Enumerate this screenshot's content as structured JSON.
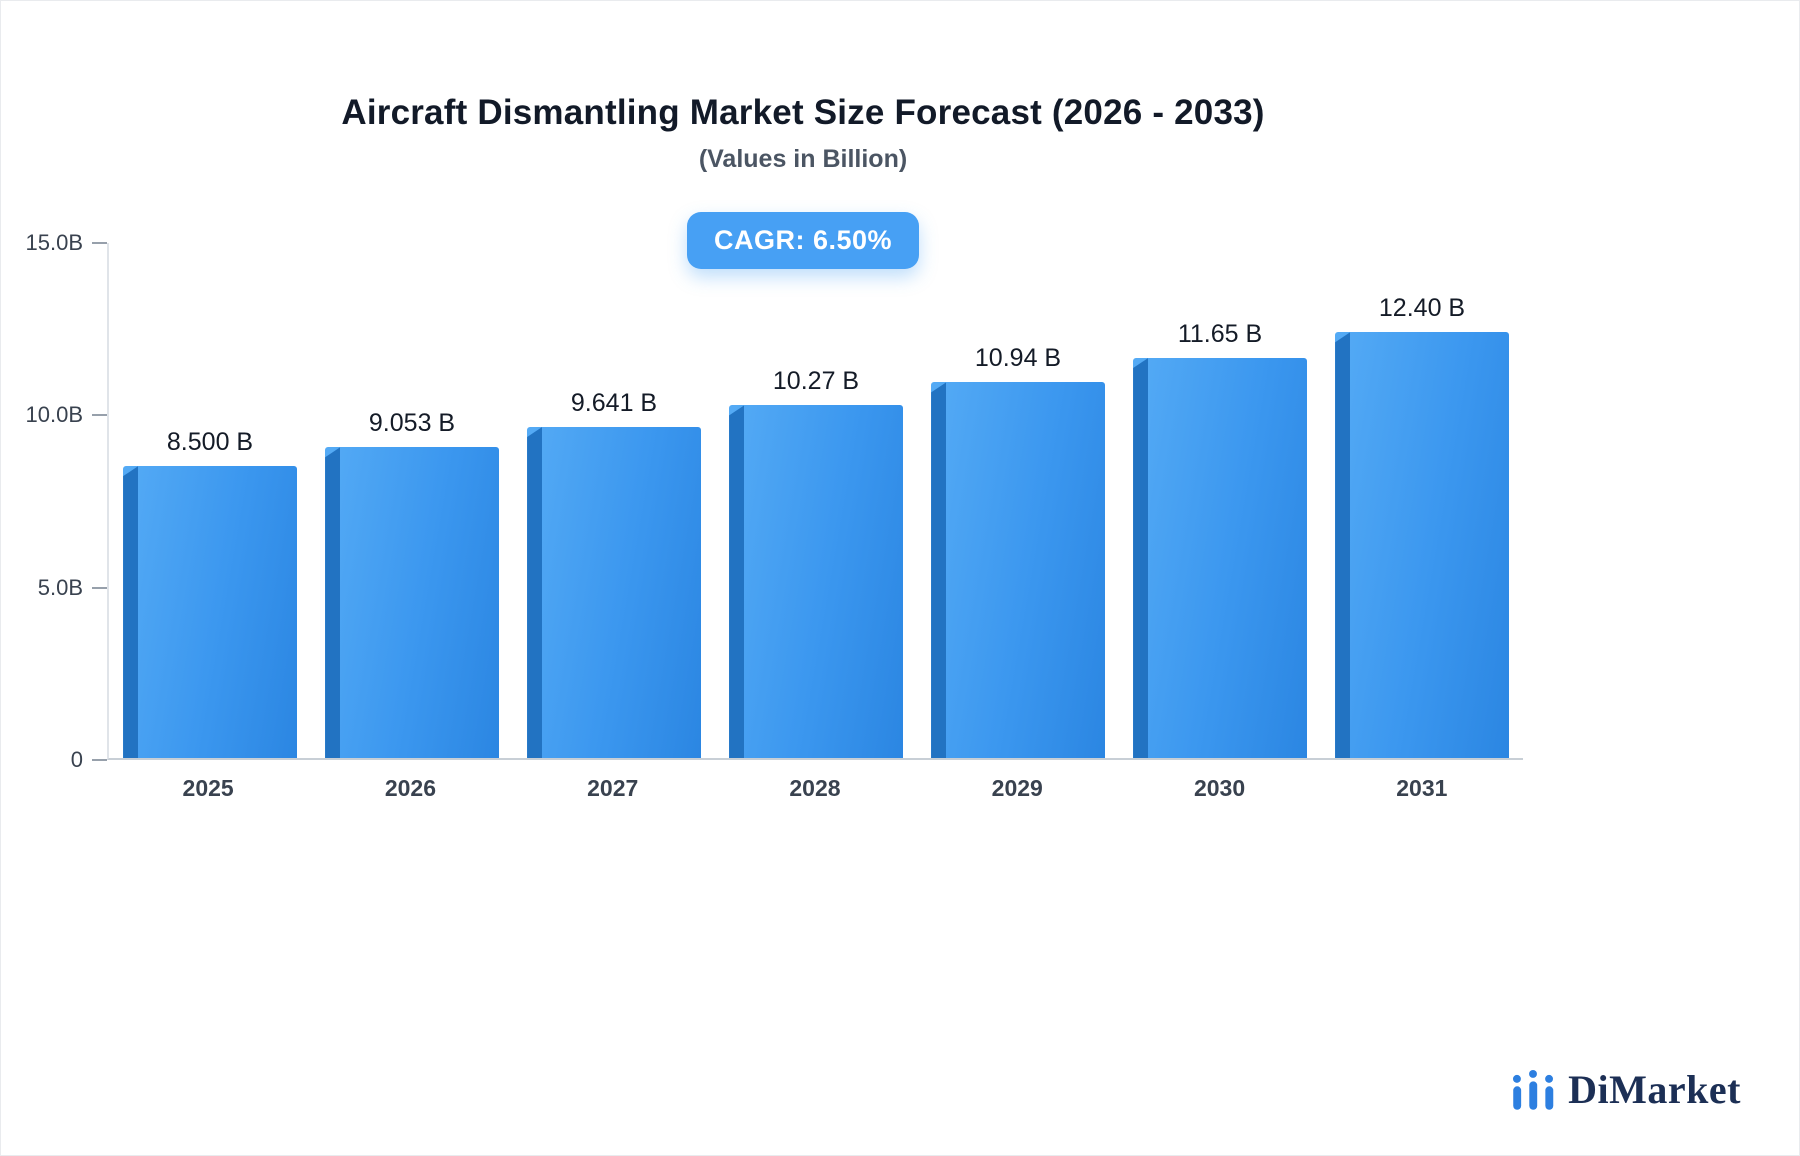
{
  "chart_data": {
    "type": "bar",
    "title": "Aircraft Dismantling Market Size Forecast (2026 - 2033)",
    "subtitle": "(Values in Billion)",
    "badge": "CAGR: 6.50%",
    "categories": [
      "2025",
      "2026",
      "2027",
      "2028",
      "2029",
      "2030",
      "2031"
    ],
    "values": [
      8.5,
      9.053,
      9.641,
      10.27,
      10.94,
      11.65,
      12.4
    ],
    "value_labels": [
      "8.500 B",
      "9.053 B",
      "9.641 B",
      "10.27 B",
      "10.94 B",
      "11.65 B",
      "12.40 B"
    ],
    "xlabel": "",
    "ylabel": "",
    "ylim": [
      0,
      15
    ],
    "yticks": [
      {
        "value": 15,
        "label": "15.0B"
      },
      {
        "value": 10,
        "label": "10.0B"
      },
      {
        "value": 5,
        "label": "5.0B"
      },
      {
        "value": 0,
        "label": "0"
      }
    ],
    "legend": "none",
    "grid": "off"
  },
  "branding": {
    "logo_text": "DiMarket"
  },
  "colors": {
    "bar_light": "#55abf5",
    "bar_dark": "#2b86e2",
    "bar_side": "#2273c2",
    "badge_bg": "#47a0f4",
    "badge_text": "#ffffff",
    "logo_blue": "#2d7fe0",
    "logo_navy": "#1c2f55"
  }
}
